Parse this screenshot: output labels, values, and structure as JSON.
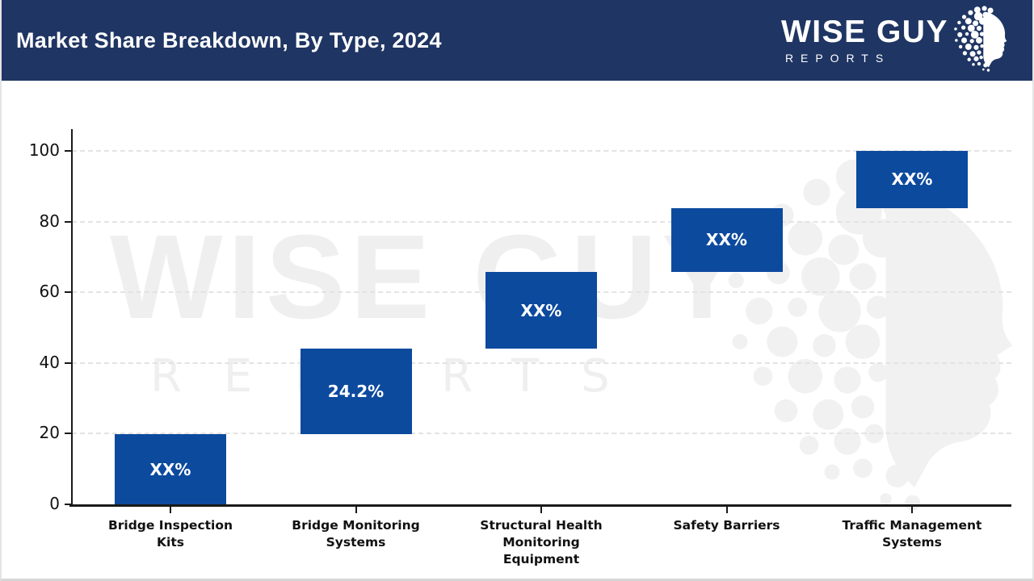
{
  "header": {
    "title": "Market Share Breakdown, By Type, 2024",
    "logo": {
      "name": "WISE GUY",
      "tagline": "REPORTS"
    }
  },
  "watermark": {
    "name": "WISE GUY",
    "tagline": "REPORTS"
  },
  "colors": {
    "header_bg": "#1f3563",
    "bar": "#0c4a9e",
    "grid": "#e3e3e3",
    "axis": "#1a1a1a",
    "bar_label": "#ffffff",
    "watermark_text": "#efefef"
  },
  "chart_data": {
    "type": "bar",
    "subtype": "waterfall",
    "title": "Market Share Breakdown, By Type, 2024",
    "xlabel": "",
    "ylabel": "",
    "ylim": [
      0,
      100
    ],
    "yticks": [
      0,
      20,
      40,
      60,
      80,
      100
    ],
    "grid": "horizontal-dashed",
    "legend": "none",
    "categories": [
      "Bridge Inspection\nKits",
      "Bridge Monitoring\nSystems",
      "Structural Health\nMonitoring\nEquipment",
      "Safety Barriers",
      "Traffic Management\nSystems"
    ],
    "segments": [
      {
        "start": 0,
        "end": 19.8,
        "label": "XX%"
      },
      {
        "start": 19.8,
        "end": 44.0,
        "label": "24.2%"
      },
      {
        "start": 44.0,
        "end": 65.8,
        "label": "XX%"
      },
      {
        "start": 65.8,
        "end": 83.8,
        "label": "XX%"
      },
      {
        "start": 83.8,
        "end": 100.0,
        "label": "XX%"
      }
    ]
  }
}
